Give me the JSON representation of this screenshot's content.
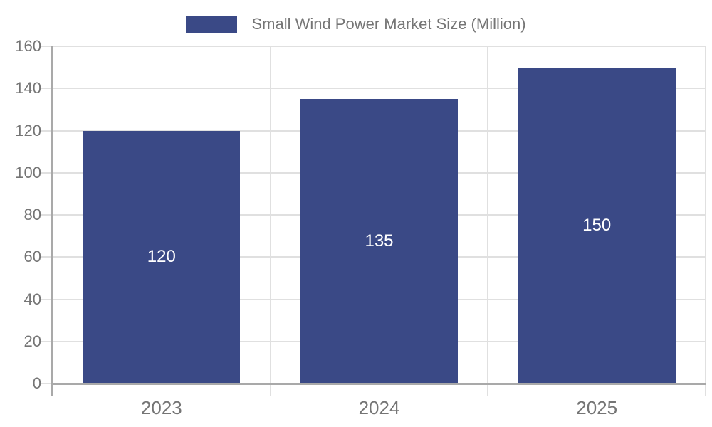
{
  "chart_data": {
    "type": "bar",
    "title": "Small Wind Power Market Size (Million)",
    "categories": [
      "2023",
      "2024",
      "2025"
    ],
    "series": [
      {
        "name": "Small Wind Power Market Size (Million)",
        "values": [
          120,
          135,
          150
        ]
      }
    ],
    "data_labels": [
      "120",
      "135",
      "150"
    ],
    "xlabel": "",
    "ylabel": "",
    "ylim": [
      0,
      160
    ],
    "yticks": [
      0,
      20,
      40,
      60,
      80,
      100,
      120,
      140,
      160
    ],
    "grid": true,
    "legend_position": "top-center",
    "colors": {
      "bar": "#3a4986",
      "grid": "#e0e0e0",
      "axis": "#a9a9a9",
      "tick_label": "#757575",
      "legend_text": "#757575",
      "bar_label": "#ffffff",
      "background": "#ffffff"
    }
  }
}
